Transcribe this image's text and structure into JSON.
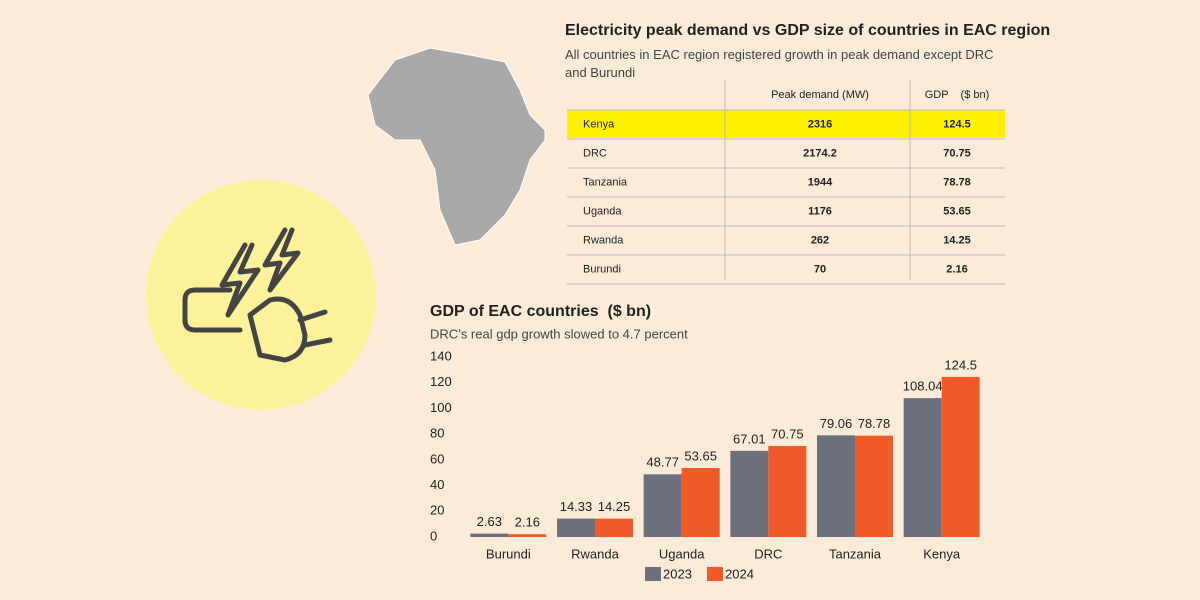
{
  "table": {
    "title": "Electricity peak demand vs GDP size of countries in EAC region",
    "subtitle": "All countries in EAC region registered growth in peak demand except DRC and Burundi",
    "columns": [
      "Peak demand (MW)",
      "GDP    ($ bn)"
    ],
    "rows": [
      [
        "Kenya",
        2316,
        124.5
      ],
      [
        "DRC",
        2174.2,
        70.75
      ],
      [
        "Tanzania",
        1944,
        78.78
      ],
      [
        "Uganda",
        1176,
        53.65
      ],
      [
        "Rwanda",
        262,
        14.25
      ],
      [
        "Burundi",
        70,
        2.16
      ]
    ]
  },
  "chart_data": {
    "type": "bar",
    "title": "GDP of EAC countries  ($ bn)",
    "subtitle": "DRC’s real gdp growth slowed to 4.7 percent",
    "categories": [
      "Burundi",
      "Rwanda",
      "Uganda",
      "DRC",
      "Tanzania",
      "Kenya"
    ],
    "series": [
      {
        "name": "2023",
        "color": "#6b6f7e",
        "values": [
          2.63,
          14.33,
          48.77,
          67.01,
          79.06,
          108.04
        ]
      },
      {
        "name": "2024",
        "color": "#f05a28",
        "values": [
          2.16,
          14.25,
          53.65,
          70.75,
          78.78,
          124.5
        ]
      }
    ],
    "ylim": [
      0,
      140
    ],
    "yticks": [
      0,
      20,
      40,
      60,
      80,
      100,
      120,
      140
    ],
    "grid": false,
    "legend": "bottom"
  }
}
